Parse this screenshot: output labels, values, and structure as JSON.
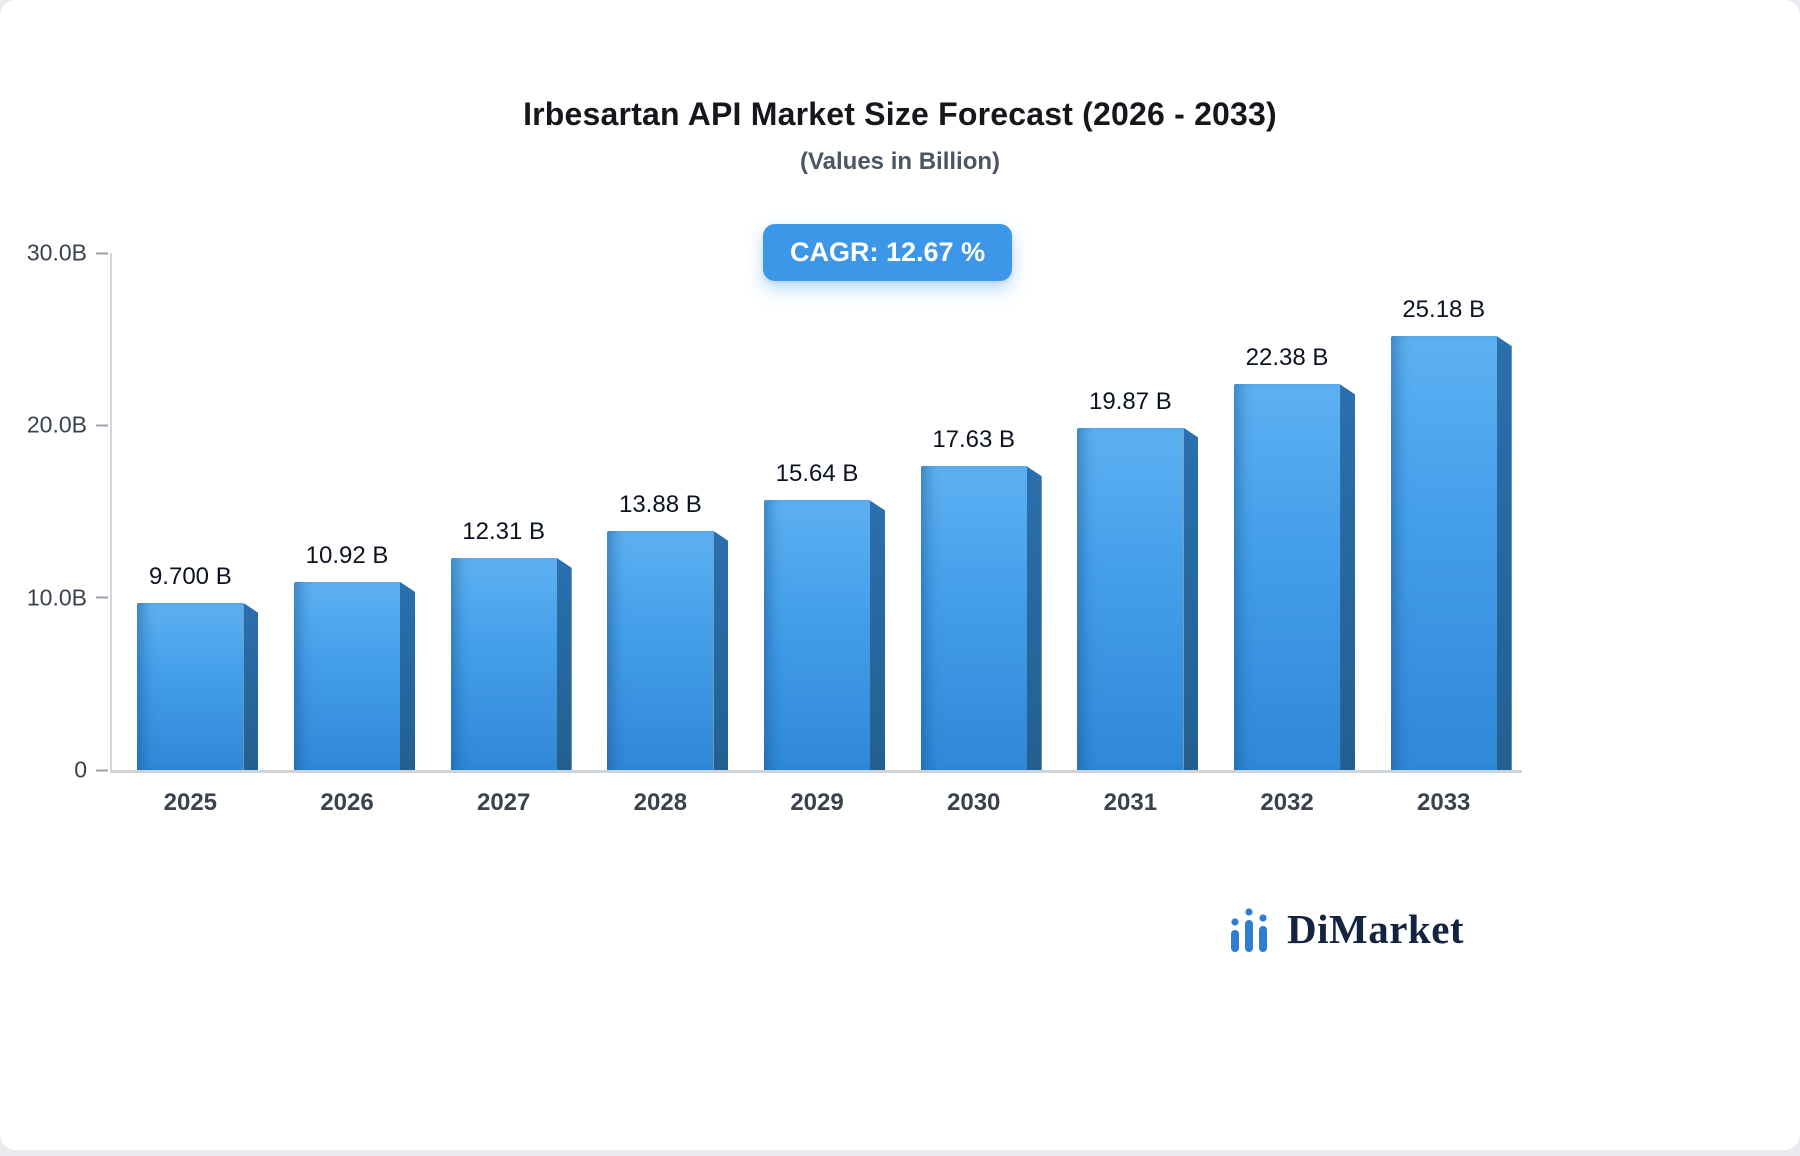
{
  "title": "Irbesartan API Market Size Forecast (2026 - 2033)",
  "subtitle": "(Values in Billion)",
  "cagr_badge": "CAGR: 12.67 %",
  "logo": {
    "text": "DiMarket",
    "icon": "bar-chart-logo-icon",
    "icon_color": "#2e7fd0",
    "text_color": "#132441"
  },
  "chart_data": {
    "type": "bar",
    "title": "Irbesartan API Market Size Forecast (2026 - 2033)",
    "subtitle": "(Values in Billion)",
    "categories": [
      "2025",
      "2026",
      "2027",
      "2028",
      "2029",
      "2030",
      "2031",
      "2032",
      "2033"
    ],
    "values": [
      9.7,
      10.92,
      12.31,
      13.88,
      15.64,
      17.63,
      19.87,
      22.38,
      25.18
    ],
    "value_labels": [
      "9.700 B",
      "10.92 B",
      "12.31 B",
      "13.88 B",
      "15.64 B",
      "17.63 B",
      "19.87 B",
      "22.38 B",
      "25.18 B"
    ],
    "xlabel": "",
    "ylabel": "",
    "ylim": [
      0,
      30
    ],
    "yticks": [
      {
        "label": "0",
        "value": 0
      },
      {
        "label": "10.0B",
        "value": 10
      },
      {
        "label": "20.0B",
        "value": 20
      },
      {
        "label": "30.0B",
        "value": 30
      }
    ],
    "bar_color": "#3d97e8",
    "bar_side_color": "#26669e",
    "grid": false,
    "legend_position": "none",
    "annotation": "CAGR: 12.67 %"
  }
}
